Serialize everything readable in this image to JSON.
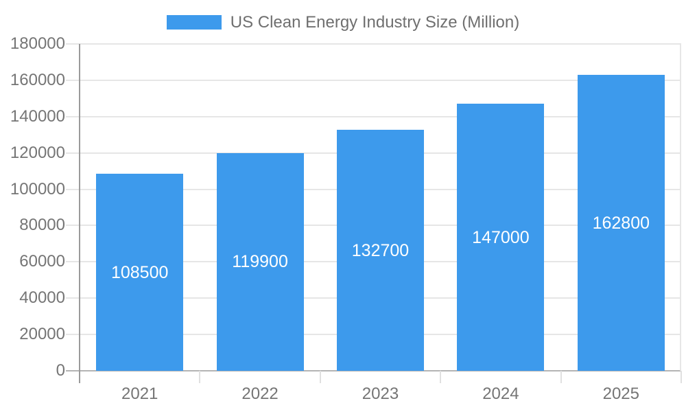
{
  "chart_data": {
    "type": "bar",
    "title": "US Clean Energy Industry Size (Million)",
    "categories": [
      "2021",
      "2022",
      "2023",
      "2024",
      "2025"
    ],
    "values": [
      108500,
      119900,
      132700,
      147000,
      162800
    ],
    "value_labels": [
      "108500",
      "119900",
      "132700",
      "147000",
      "162800"
    ],
    "ylim": [
      0,
      180000
    ],
    "ytick_step": 20000,
    "yticks": [
      "0",
      "20000",
      "40000",
      "60000",
      "80000",
      "100000",
      "120000",
      "140000",
      "160000",
      "180000"
    ],
    "grid": true,
    "legend": {
      "position": "top-center",
      "label": "US Clean Energy Industry Size (Million)"
    },
    "colors": {
      "bar": "#3D9AEC",
      "grid": "#E6E6E6",
      "tick": "#E0E0E0",
      "axis_text": "#757575",
      "legend_text": "#6F6F6F",
      "bar_label_text": "#FFFFFF",
      "x_axis_line": "#B3B3B3",
      "y_axis_line": "#9A9A9A",
      "background": "#FFFFFF"
    }
  }
}
